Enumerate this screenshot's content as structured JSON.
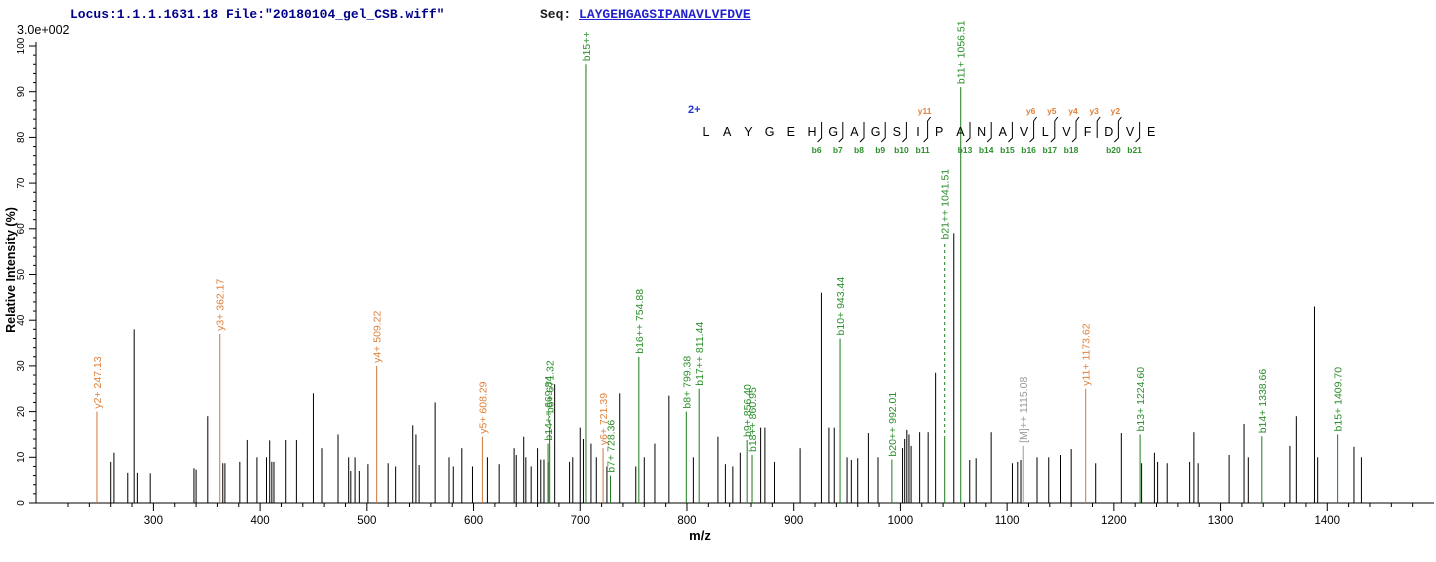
{
  "header": {
    "locus_file": "Locus:1.1.1.1631.18 File:\"20180104_gel_CSB.wiff\"",
    "seq_label": "Seq: ",
    "sequence": "LAYGEHGAGSIPANAVLVFDVE",
    "base_peak_intensity": "3.0e+002"
  },
  "annotation": {
    "charge": "2+",
    "residues": [
      "L",
      "A",
      "Y",
      "G",
      "E",
      "H",
      "G",
      "A",
      "G",
      "S",
      "I",
      "P",
      "A",
      "N",
      "A",
      "V",
      "L",
      "V",
      "F",
      "D",
      "V",
      "E"
    ],
    "cleavages": [
      {
        "after": 6,
        "b": "b6"
      },
      {
        "after": 7,
        "b": "b7"
      },
      {
        "after": 8,
        "b": "b8"
      },
      {
        "after": 9,
        "b": "b9"
      },
      {
        "after": 10,
        "b": "b10"
      },
      {
        "after": 11,
        "b": "b11",
        "y": "y11"
      },
      {
        "after": 13,
        "b": "b13"
      },
      {
        "after": 14,
        "b": "b14"
      },
      {
        "after": 15,
        "b": "b15"
      },
      {
        "after": 16,
        "b": "b16",
        "y": "y6"
      },
      {
        "after": 17,
        "b": "b17",
        "y": "y5"
      },
      {
        "after": 18,
        "b": "b18",
        "y": "y4"
      },
      {
        "after": 19,
        "y": "y3"
      },
      {
        "after": 20,
        "b": "b20",
        "y": "y2"
      },
      {
        "after": 21,
        "b": "b21"
      }
    ]
  },
  "colors": {
    "peak": "#000000",
    "b_line": "#1b7a1b",
    "b_label": "#2c8f2c",
    "y_line": "#cf7638",
    "y_label": "#e0813c",
    "precursor": "#9a9a9a",
    "charge_label": "#2233cc",
    "axis": "#000000"
  },
  "chart_data": {
    "type": "stem",
    "title": "",
    "xlabel": "m/z",
    "ylabel": "Relative  Intensity (%)",
    "xlim": [
      190,
      1500
    ],
    "ylim": [
      0,
      100
    ],
    "x_major_ticks": [
      300,
      400,
      500,
      600,
      700,
      800,
      900,
      1000,
      1100,
      1200,
      1300,
      1400
    ],
    "x_minor_step": 20,
    "y_major_ticks": [
      0,
      10,
      20,
      30,
      40,
      50,
      60,
      70,
      80,
      90,
      100
    ],
    "y_minor_step": 2,
    "grid": false,
    "unassigned_peaks": [
      [
        260,
        9
      ],
      [
        263,
        11
      ],
      [
        276,
        6.6
      ],
      [
        282,
        38
      ],
      [
        285,
        6.6
      ],
      [
        297,
        6.5
      ],
      [
        338,
        7.6
      ],
      [
        340,
        7.3
      ],
      [
        351,
        19
      ],
      [
        365,
        8.7
      ],
      [
        367,
        8.7
      ],
      [
        381,
        9
      ],
      [
        388,
        13.8
      ],
      [
        397,
        10
      ],
      [
        406,
        10
      ],
      [
        409,
        13.7
      ],
      [
        411,
        9
      ],
      [
        413,
        9
      ],
      [
        424,
        13.8
      ],
      [
        434,
        13.8
      ],
      [
        450,
        24
      ],
      [
        458,
        12
      ],
      [
        473,
        15
      ],
      [
        483,
        10
      ],
      [
        485,
        7
      ],
      [
        489,
        10
      ],
      [
        493,
        7
      ],
      [
        501,
        8.5
      ],
      [
        520,
        8.7
      ],
      [
        527,
        8
      ],
      [
        543,
        17
      ],
      [
        546,
        15
      ],
      [
        549,
        8.3
      ],
      [
        564,
        22
      ],
      [
        577,
        10
      ],
      [
        581,
        8
      ],
      [
        589,
        12
      ],
      [
        599,
        8
      ],
      [
        613,
        10
      ],
      [
        624,
        8.5
      ],
      [
        638,
        12
      ],
      [
        640,
        10.5
      ],
      [
        647,
        14.5
      ],
      [
        649,
        10
      ],
      [
        654,
        8
      ],
      [
        660,
        12
      ],
      [
        663,
        9.5
      ],
      [
        666,
        9.5
      ],
      [
        670,
        9
      ],
      [
        676,
        26
      ],
      [
        690,
        9
      ],
      [
        693,
        10
      ],
      [
        700,
        16.5
      ],
      [
        703,
        14
      ],
      [
        710,
        13
      ],
      [
        715,
        10
      ],
      [
        725,
        8
      ],
      [
        737,
        24
      ],
      [
        752,
        8
      ],
      [
        760,
        10
      ],
      [
        770,
        13
      ],
      [
        783,
        23.5
      ],
      [
        806,
        10
      ],
      [
        829,
        14.5
      ],
      [
        836,
        8.5
      ],
      [
        843,
        8
      ],
      [
        850,
        11
      ],
      [
        869,
        16.5
      ],
      [
        873,
        16.5
      ],
      [
        882,
        9
      ],
      [
        906,
        12
      ],
      [
        926,
        46
      ],
      [
        933,
        16.5
      ],
      [
        938,
        16.5
      ],
      [
        950,
        10
      ],
      [
        954,
        9.4
      ],
      [
        960,
        9.8
      ],
      [
        970,
        15.3
      ],
      [
        979,
        10
      ],
      [
        1002,
        12
      ],
      [
        1004,
        14
      ],
      [
        1006,
        16
      ],
      [
        1008,
        15
      ],
      [
        1010,
        12.5
      ],
      [
        1018,
        15.5
      ],
      [
        1026,
        15.5
      ],
      [
        1033,
        28.5
      ],
      [
        1050,
        59
      ],
      [
        1065,
        9.4
      ],
      [
        1071,
        9.8
      ],
      [
        1085,
        15.5
      ],
      [
        1105,
        8.7
      ],
      [
        1110,
        9
      ],
      [
        1113,
        9.4
      ],
      [
        1128,
        10
      ],
      [
        1139,
        10
      ],
      [
        1150,
        10.5
      ],
      [
        1160,
        11.8
      ],
      [
        1183,
        8.7
      ],
      [
        1207,
        15.3
      ],
      [
        1226,
        8.7
      ],
      [
        1238,
        11
      ],
      [
        1241,
        9
      ],
      [
        1250,
        8.7
      ],
      [
        1271,
        9
      ],
      [
        1275,
        15.5
      ],
      [
        1279,
        8.7
      ],
      [
        1308,
        10.5
      ],
      [
        1322,
        17.3
      ],
      [
        1326,
        10
      ],
      [
        1365,
        12.5
      ],
      [
        1371,
        19
      ],
      [
        1388,
        43
      ],
      [
        1391,
        10
      ],
      [
        1425,
        12.3
      ],
      [
        1432,
        10
      ]
    ],
    "fragments": [
      {
        "label": "y2+ 247.13",
        "mz": 247.13,
        "intensity": 20,
        "ion": "y"
      },
      {
        "label": "y3+ 362.17",
        "mz": 362.17,
        "intensity": 37,
        "ion": "y"
      },
      {
        "label": "y4+ 509.22",
        "mz": 509.22,
        "intensity": 30,
        "ion": "y"
      },
      {
        "label": "y5+ 608.29",
        "mz": 608.29,
        "intensity": 14.5,
        "ion": "y"
      },
      {
        "label": "y6+ 721.39",
        "mz": 721.39,
        "intensity": 12,
        "ion": "y"
      },
      {
        "label": "y11+ 1173.62",
        "mz": 1173.62,
        "intensity": 25,
        "ion": "y"
      },
      {
        "label": "b14++ 669.84",
        "mz": 669.84,
        "intensity": 13,
        "ion": "b"
      },
      {
        "label": "b6+ 671.32",
        "mz": 671.32,
        "intensity": 16,
        "ion": "b",
        "dashed": true,
        "label_at_pct": 19
      },
      {
        "label": "b15++",
        "mz": 705.35,
        "intensity": 96,
        "ion": "b"
      },
      {
        "label": "b7+ 728.36",
        "mz": 728.36,
        "intensity": 6,
        "ion": "b"
      },
      {
        "label": "b16++ 754.88",
        "mz": 754.88,
        "intensity": 32,
        "ion": "b"
      },
      {
        "label": "b8+ 799.38",
        "mz": 799.38,
        "intensity": 20,
        "ion": "b"
      },
      {
        "label": "b17++ 811.44",
        "mz": 811.44,
        "intensity": 25,
        "ion": "b"
      },
      {
        "label": "b9+ 856.40",
        "mz": 856.4,
        "intensity": 13.8,
        "ion": "b"
      },
      {
        "label": "b18++ 860.95",
        "mz": 860.95,
        "intensity": 10.5,
        "ion": "b"
      },
      {
        "label": "b10+ 943.44",
        "mz": 943.44,
        "intensity": 36,
        "ion": "b"
      },
      {
        "label": "b20++ 992.01",
        "mz": 992.01,
        "intensity": 9.5,
        "ion": "b"
      },
      {
        "label": "b21++ 1041.51",
        "mz": 1041.51,
        "intensity": 14,
        "ion": "b",
        "dashed": true,
        "label_at_pct": 57
      },
      {
        "label": "b11+ 1056.51",
        "mz": 1056.51,
        "intensity": 91,
        "ion": "b"
      },
      {
        "label": "[M]++ 1115.08",
        "mz": 1115.08,
        "intensity": 12.5,
        "ion": "precursor"
      },
      {
        "label": "b13+ 1224.60",
        "mz": 1224.6,
        "intensity": 15,
        "ion": "b"
      },
      {
        "label": "b14+ 1338.66",
        "mz": 1338.66,
        "intensity": 14.6,
        "ion": "b"
      },
      {
        "label": "b15+ 1409.70",
        "mz": 1409.7,
        "intensity": 15,
        "ion": "b"
      }
    ]
  }
}
